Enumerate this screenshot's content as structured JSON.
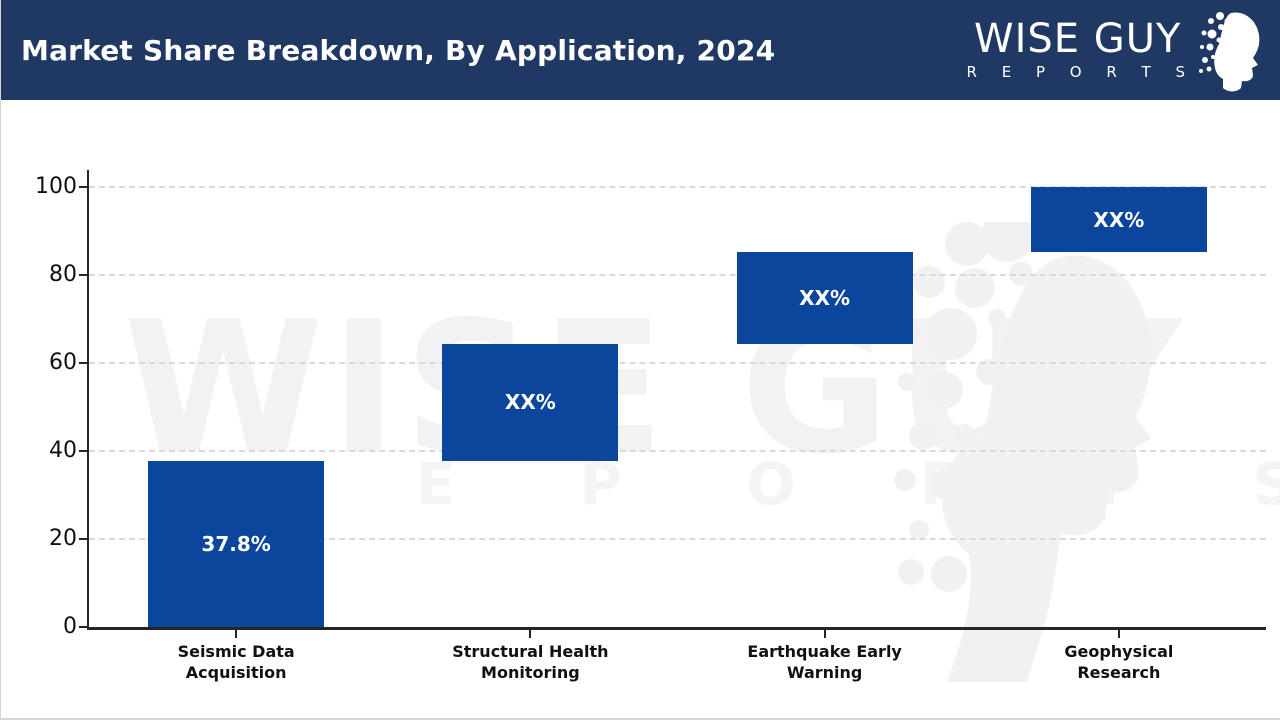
{
  "header": {
    "title": "Market Share Breakdown, By Application, 2024",
    "logo": {
      "line1": "WISE GUY",
      "line2": "R E P O R T S"
    }
  },
  "watermark": {
    "line1": "WISE GUY",
    "line2": "R E P O R T S"
  },
  "colors": {
    "header_bg": "#203864",
    "bar": "#0c459c",
    "grid": "#d9d9d9",
    "axis": "#262626",
    "watermark": "#f2f2f4",
    "label_on_bar": "#ffffff"
  },
  "chart_data": {
    "type": "bar",
    "variant": "waterfall",
    "title": "Market Share Breakdown, By Application, 2024",
    "categories": [
      [
        "Seismic Data",
        "Acquisition"
      ],
      [
        "Structural Health",
        "Monitoring"
      ],
      [
        "Earthquake Early",
        "Warning"
      ],
      [
        "Geophysical",
        "Research"
      ]
    ],
    "bars": [
      {
        "category": "Seismic Data Acquisition",
        "start": 0,
        "end": 37.8,
        "label": "37.8%"
      },
      {
        "category": "Structural Health Monitoring",
        "start": 37.8,
        "end": 64.3,
        "label": "XX%"
      },
      {
        "category": "Earthquake Early Warning",
        "start": 64.3,
        "end": 85.2,
        "label": "XX%"
      },
      {
        "category": "Geophysical Research",
        "start": 85.2,
        "end": 100,
        "label": "XX%"
      }
    ],
    "ylim": [
      0,
      100
    ],
    "yticks": [
      0,
      20,
      40,
      60,
      80,
      100
    ],
    "xlabel": "",
    "ylabel": "",
    "grid": "horizontal-dashed",
    "legend": "none"
  }
}
